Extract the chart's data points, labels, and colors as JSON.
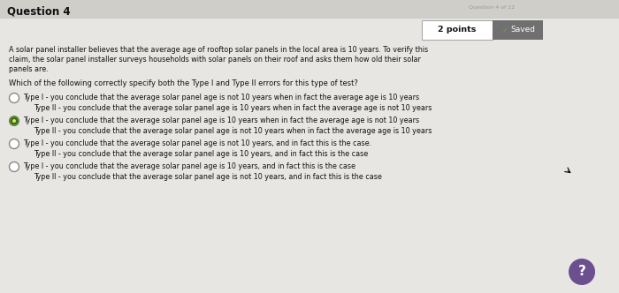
{
  "title": "Question 4",
  "points_text": "2 points",
  "saved_text": "✓ Saved",
  "bg_color": "#e8e6e3",
  "header_line_color": "#cccccc",
  "intro_text_lines": [
    "A solar panel installer believes that the average age of rooftop solar panels in the local area is 10 years. To verify this",
    "claim, the solar panel installer surveys households with solar panels on their roof and asks them how old their solar",
    "panels are."
  ],
  "question_text": "Which of the following correctly specify both the Type I and Type II errors for this type of test?",
  "options": [
    {
      "selected": false,
      "type1": "Type I - you conclude that the average solar panel age is not 10 years when in fact the average age is 10 years",
      "type2": "Type II - you conclude that the average solar panel age is 10 years when in fact the average age is not 10 years"
    },
    {
      "selected": true,
      "type1": "Type I - you conclude that the average solar panel age is 10 years when in fact the average age is not 10 years",
      "type2": "Type II - you conclude that the average solar panel age is not 10 years when in fact the average age is 10 years"
    },
    {
      "selected": false,
      "type1": "Type I - you conclude that the average solar panel age is not 10 years, and in fact this is the case.",
      "type2": "Type II - you conclude that the average solar panel age is 10 years, and in fact this is the case"
    },
    {
      "selected": false,
      "type1": "Type I - you conclude that the average solar panel age is 10 years, and in fact this is the case",
      "type2": "Type II - you conclude that the average solar panel age is not 10 years, and in fact this is the case"
    }
  ],
  "help_circle_color": "#6b4f8e",
  "saved_bg": "#707070",
  "saved_check_color": "#5aaa3c",
  "selected_circle_color": "#5a8a3c",
  "nav_text": "Question 4 of 12",
  "title_fontsize": 8.5,
  "body_fontsize": 6.8,
  "small_fontsize": 5.8
}
